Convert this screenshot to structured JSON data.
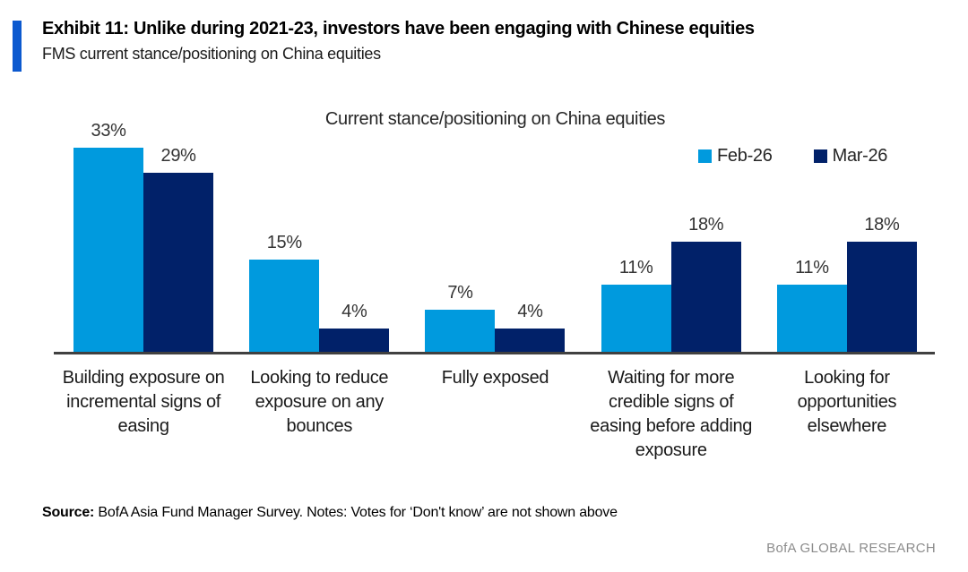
{
  "exhibit": {
    "title": "Exhibit 11: Unlike during 2021-23, investors have been engaging with Chinese equities",
    "subtitle": "FMS current stance/positioning on China equities"
  },
  "chart_data": {
    "type": "bar",
    "title": "Current stance/positioning on China equities",
    "categories": [
      "Building exposure on incremental signs of easing",
      "Looking to reduce exposure on any bounces",
      "Fully exposed",
      "Waiting for more credible signs of easing before adding exposure",
      "Looking for opportunities elsewhere"
    ],
    "series": [
      {
        "name": "Feb-26",
        "color": "#009ADE",
        "values": [
          33,
          15,
          7,
          11,
          11
        ]
      },
      {
        "name": "Mar-26",
        "color": "#012169",
        "values": [
          29,
          4,
          4,
          18,
          18
        ]
      }
    ],
    "value_suffix": "%",
    "ylim": [
      0,
      35
    ],
    "grid": false,
    "data_labels": true,
    "legend_position": "top-right"
  },
  "footer": {
    "source_label": "Source:",
    "source_text": " BofA Asia Fund Manager Survey. Notes: Votes for ‘Don't know’ are not shown above",
    "branding": "BofA GLOBAL RESEARCH"
  },
  "colors": {
    "accent_bar": "#0C59CF",
    "feb_series": "#009ADE",
    "mar_series": "#012169",
    "axis_line": "#404040",
    "branding_gray": "#8C8C8C"
  }
}
